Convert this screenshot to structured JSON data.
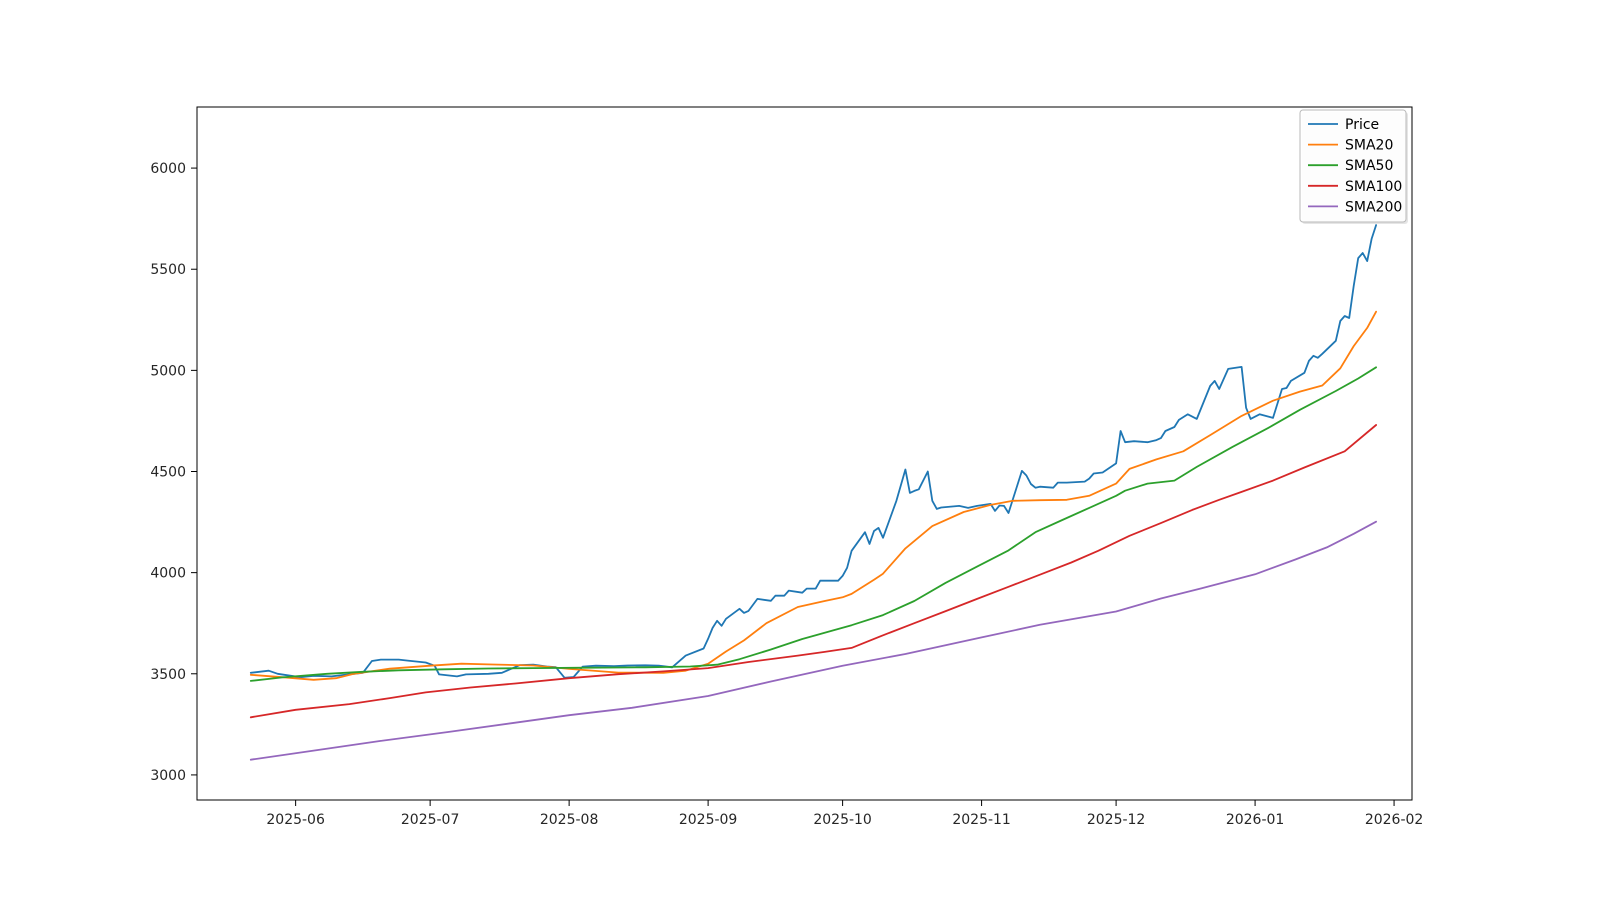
{
  "figure": {
    "background": "#ffffff",
    "spine_color": "#000000",
    "tick_text_color": "#262626",
    "legend_border_color": "#b9b9b9",
    "legend_background": "#ffffff"
  },
  "chart_data": {
    "type": "line",
    "title": "",
    "xlabel": "",
    "ylabel": "",
    "grid": false,
    "xlim": [
      "2025-05-10",
      "2026-02-05"
    ],
    "ylim": [
      2876,
      6302
    ],
    "x_ticks": [
      {
        "label": "2025-06",
        "date": "2025-06-01"
      },
      {
        "label": "2025-07",
        "date": "2025-07-01"
      },
      {
        "label": "2025-08",
        "date": "2025-08-01"
      },
      {
        "label": "2025-09",
        "date": "2025-09-01"
      },
      {
        "label": "2025-10",
        "date": "2025-10-01"
      },
      {
        "label": "2025-11",
        "date": "2025-11-01"
      },
      {
        "label": "2025-12",
        "date": "2025-12-01"
      },
      {
        "label": "2026-01",
        "date": "2026-01-01"
      },
      {
        "label": "2026-02",
        "date": "2026-02-01"
      }
    ],
    "y_ticks": [
      3000,
      3500,
      4000,
      4500,
      5000,
      5500,
      6000
    ],
    "legend": {
      "position": "upper-right",
      "labels": [
        "Price",
        "SMA20",
        "SMA50",
        "SMA100",
        "SMA200"
      ]
    },
    "series": [
      {
        "name": "Price",
        "color": "#1f77b4",
        "points": [
          [
            "2025-05-22",
            3505
          ],
          [
            "2025-05-26",
            3515
          ],
          [
            "2025-05-28",
            3500
          ],
          [
            "2025-06-02",
            3483
          ],
          [
            "2025-06-05",
            3490
          ],
          [
            "2025-06-09",
            3487
          ],
          [
            "2025-06-12",
            3495
          ],
          [
            "2025-06-16",
            3505
          ],
          [
            "2025-06-18",
            3563
          ],
          [
            "2025-06-20",
            3570
          ],
          [
            "2025-06-24",
            3570
          ],
          [
            "2025-06-26",
            3565
          ],
          [
            "2025-06-30",
            3556
          ],
          [
            "2025-07-02",
            3540
          ],
          [
            "2025-07-03",
            3497
          ],
          [
            "2025-07-07",
            3487
          ],
          [
            "2025-07-09",
            3497
          ],
          [
            "2025-07-14",
            3500
          ],
          [
            "2025-07-17",
            3505
          ],
          [
            "2025-07-21",
            3543
          ],
          [
            "2025-07-24",
            3545
          ],
          [
            "2025-07-27",
            3536
          ],
          [
            "2025-07-29",
            3533
          ],
          [
            "2025-07-31",
            3480
          ],
          [
            "2025-08-02",
            3484
          ],
          [
            "2025-08-04",
            3535
          ],
          [
            "2025-08-07",
            3540
          ],
          [
            "2025-08-11",
            3538
          ],
          [
            "2025-08-14",
            3541
          ],
          [
            "2025-08-18",
            3542
          ],
          [
            "2025-08-21",
            3540
          ],
          [
            "2025-08-24",
            3532
          ],
          [
            "2025-08-27",
            3590
          ],
          [
            "2025-08-31",
            3625
          ],
          [
            "2025-09-01",
            3673
          ],
          [
            "2025-09-02",
            3727
          ],
          [
            "2025-09-03",
            3762
          ],
          [
            "2025-09-04",
            3737
          ],
          [
            "2025-09-05",
            3772
          ],
          [
            "2025-09-08",
            3821
          ],
          [
            "2025-09-09",
            3801
          ],
          [
            "2025-09-10",
            3811
          ],
          [
            "2025-09-12",
            3870
          ],
          [
            "2025-09-15",
            3861
          ],
          [
            "2025-09-16",
            3886
          ],
          [
            "2025-09-18",
            3886
          ],
          [
            "2025-09-19",
            3911
          ],
          [
            "2025-09-22",
            3901
          ],
          [
            "2025-09-23",
            3921
          ],
          [
            "2025-09-25",
            3921
          ],
          [
            "2025-09-26",
            3960
          ],
          [
            "2025-09-30",
            3960
          ],
          [
            "2025-10-01",
            3984
          ],
          [
            "2025-10-02",
            4024
          ],
          [
            "2025-10-03",
            4108
          ],
          [
            "2025-10-06",
            4200
          ],
          [
            "2025-10-07",
            4142
          ],
          [
            "2025-10-08",
            4206
          ],
          [
            "2025-10-09",
            4221
          ],
          [
            "2025-10-10",
            4172
          ],
          [
            "2025-10-13",
            4355
          ],
          [
            "2025-10-15",
            4510
          ],
          [
            "2025-10-16",
            4394
          ],
          [
            "2025-10-17",
            4404
          ],
          [
            "2025-10-18",
            4412
          ],
          [
            "2025-10-20",
            4500
          ],
          [
            "2025-10-21",
            4355
          ],
          [
            "2025-10-22",
            4315
          ],
          [
            "2025-10-23",
            4322
          ],
          [
            "2025-10-27",
            4330
          ],
          [
            "2025-10-29",
            4320
          ],
          [
            "2025-10-31",
            4330
          ],
          [
            "2025-11-03",
            4340
          ],
          [
            "2025-11-04",
            4305
          ],
          [
            "2025-11-05",
            4332
          ],
          [
            "2025-11-06",
            4330
          ],
          [
            "2025-11-07",
            4295
          ],
          [
            "2025-11-10",
            4503
          ],
          [
            "2025-11-11",
            4480
          ],
          [
            "2025-11-12",
            4438
          ],
          [
            "2025-11-13",
            4420
          ],
          [
            "2025-11-14",
            4425
          ],
          [
            "2025-11-17",
            4420
          ],
          [
            "2025-11-18",
            4445
          ],
          [
            "2025-11-20",
            4445
          ],
          [
            "2025-11-24",
            4450
          ],
          [
            "2025-11-25",
            4465
          ],
          [
            "2025-11-26",
            4490
          ],
          [
            "2025-11-28",
            4495
          ],
          [
            "2025-12-01",
            4540
          ],
          [
            "2025-12-02",
            4700
          ],
          [
            "2025-12-03",
            4645
          ],
          [
            "2025-12-05",
            4650
          ],
          [
            "2025-12-08",
            4645
          ],
          [
            "2025-12-10",
            4655
          ],
          [
            "2025-12-11",
            4665
          ],
          [
            "2025-12-12",
            4700
          ],
          [
            "2025-12-14",
            4720
          ],
          [
            "2025-12-15",
            4755
          ],
          [
            "2025-12-17",
            4783
          ],
          [
            "2025-12-19",
            4760
          ],
          [
            "2025-12-22",
            4923
          ],
          [
            "2025-12-23",
            4948
          ],
          [
            "2025-12-24",
            4908
          ],
          [
            "2025-12-26",
            5007
          ],
          [
            "2025-12-29",
            5017
          ],
          [
            "2025-12-30",
            4815
          ],
          [
            "2025-12-31",
            4760
          ],
          [
            "2026-01-02",
            4783
          ],
          [
            "2026-01-05",
            4765
          ],
          [
            "2026-01-07",
            4908
          ],
          [
            "2026-01-08",
            4913
          ],
          [
            "2026-01-09",
            4948
          ],
          [
            "2026-01-12",
            4988
          ],
          [
            "2026-01-13",
            5047
          ],
          [
            "2026-01-14",
            5072
          ],
          [
            "2026-01-15",
            5062
          ],
          [
            "2026-01-16",
            5082
          ],
          [
            "2026-01-19",
            5146
          ],
          [
            "2026-01-20",
            5244
          ],
          [
            "2026-01-21",
            5269
          ],
          [
            "2026-01-22",
            5259
          ],
          [
            "2026-01-23",
            5417
          ],
          [
            "2026-01-24",
            5555
          ],
          [
            "2026-01-25",
            5580
          ],
          [
            "2026-01-26",
            5540
          ],
          [
            "2026-01-27",
            5650
          ],
          [
            "2026-01-28",
            5718
          ]
        ]
      },
      {
        "name": "SMA20",
        "color": "#ff7f0e",
        "points": [
          [
            "2025-05-22",
            3495
          ],
          [
            "2025-05-29",
            3483
          ],
          [
            "2025-06-05",
            3470
          ],
          [
            "2025-06-10",
            3478
          ],
          [
            "2025-06-14",
            3500
          ],
          [
            "2025-06-22",
            3525
          ],
          [
            "2025-07-01",
            3540
          ],
          [
            "2025-07-08",
            3550
          ],
          [
            "2025-07-15",
            3546
          ],
          [
            "2025-07-24",
            3541
          ],
          [
            "2025-08-01",
            3524
          ],
          [
            "2025-08-12",
            3506
          ],
          [
            "2025-08-22",
            3505
          ],
          [
            "2025-08-27",
            3515
          ],
          [
            "2025-09-01",
            3550
          ],
          [
            "2025-09-05",
            3610
          ],
          [
            "2025-09-09",
            3665
          ],
          [
            "2025-09-14",
            3750
          ],
          [
            "2025-09-21",
            3830
          ],
          [
            "2025-09-27",
            3860
          ],
          [
            "2025-10-01",
            3878
          ],
          [
            "2025-10-03",
            3895
          ],
          [
            "2025-10-08",
            3965
          ],
          [
            "2025-10-10",
            3995
          ],
          [
            "2025-10-15",
            4120
          ],
          [
            "2025-10-21",
            4230
          ],
          [
            "2025-10-28",
            4300
          ],
          [
            "2025-11-03",
            4335
          ],
          [
            "2025-11-08",
            4355
          ],
          [
            "2025-11-14",
            4358
          ],
          [
            "2025-11-20",
            4360
          ],
          [
            "2025-11-25",
            4380
          ],
          [
            "2025-12-01",
            4440
          ],
          [
            "2025-12-04",
            4513
          ],
          [
            "2025-12-10",
            4560
          ],
          [
            "2025-12-16",
            4600
          ],
          [
            "2025-12-22",
            4680
          ],
          [
            "2025-12-29",
            4775
          ],
          [
            "2026-01-05",
            4850
          ],
          [
            "2026-01-11",
            4895
          ],
          [
            "2026-01-16",
            4925
          ],
          [
            "2026-01-20",
            5010
          ],
          [
            "2026-01-23",
            5120
          ],
          [
            "2026-01-26",
            5210
          ],
          [
            "2026-01-28",
            5290
          ]
        ]
      },
      {
        "name": "SMA50",
        "color": "#2ca02c",
        "points": [
          [
            "2025-05-22",
            3465
          ],
          [
            "2025-05-29",
            3482
          ],
          [
            "2025-06-08",
            3500
          ],
          [
            "2025-06-16",
            3510
          ],
          [
            "2025-06-24",
            3517
          ],
          [
            "2025-07-04",
            3522
          ],
          [
            "2025-07-14",
            3526
          ],
          [
            "2025-07-24",
            3528
          ],
          [
            "2025-08-05",
            3530
          ],
          [
            "2025-08-18",
            3532
          ],
          [
            "2025-08-28",
            3536
          ],
          [
            "2025-09-03",
            3545
          ],
          [
            "2025-09-08",
            3572
          ],
          [
            "2025-09-15",
            3620
          ],
          [
            "2025-09-22",
            3672
          ],
          [
            "2025-09-29",
            3715
          ],
          [
            "2025-10-03",
            3740
          ],
          [
            "2025-10-10",
            3790
          ],
          [
            "2025-10-17",
            3860
          ],
          [
            "2025-10-24",
            3950
          ],
          [
            "2025-10-31",
            4030
          ],
          [
            "2025-11-07",
            4110
          ],
          [
            "2025-11-13",
            4200
          ],
          [
            "2025-11-19",
            4260
          ],
          [
            "2025-11-25",
            4320
          ],
          [
            "2025-12-01",
            4380
          ],
          [
            "2025-12-03",
            4405
          ],
          [
            "2025-12-08",
            4440
          ],
          [
            "2025-12-14",
            4455
          ],
          [
            "2025-12-19",
            4523
          ],
          [
            "2025-12-27",
            4622
          ],
          [
            "2026-01-04",
            4716
          ],
          [
            "2026-01-11",
            4805
          ],
          [
            "2026-01-19",
            4898
          ],
          [
            "2026-01-24",
            4960
          ],
          [
            "2026-01-28",
            5015
          ]
        ]
      },
      {
        "name": "SMA100",
        "color": "#d62728",
        "points": [
          [
            "2025-05-22",
            3285
          ],
          [
            "2025-06-01",
            3322
          ],
          [
            "2025-06-13",
            3350
          ],
          [
            "2025-06-22",
            3380
          ],
          [
            "2025-06-30",
            3408
          ],
          [
            "2025-07-10",
            3432
          ],
          [
            "2025-07-20",
            3452
          ],
          [
            "2025-08-01",
            3478
          ],
          [
            "2025-08-12",
            3498
          ],
          [
            "2025-08-22",
            3512
          ],
          [
            "2025-09-01",
            3528
          ],
          [
            "2025-09-10",
            3558
          ],
          [
            "2025-09-21",
            3590
          ],
          [
            "2025-09-27",
            3608
          ],
          [
            "2025-10-03",
            3628
          ],
          [
            "2025-10-10",
            3690
          ],
          [
            "2025-10-17",
            3750
          ],
          [
            "2025-10-24",
            3810
          ],
          [
            "2025-10-31",
            3870
          ],
          [
            "2025-11-07",
            3930
          ],
          [
            "2025-11-14",
            3990
          ],
          [
            "2025-11-21",
            4050
          ],
          [
            "2025-11-27",
            4108
          ],
          [
            "2025-12-04",
            4182
          ],
          [
            "2025-12-11",
            4245
          ],
          [
            "2025-12-18",
            4310
          ],
          [
            "2025-12-24",
            4360
          ],
          [
            "2025-12-29",
            4399
          ],
          [
            "2026-01-05",
            4455
          ],
          [
            "2026-01-12",
            4520
          ],
          [
            "2026-01-21",
            4600
          ],
          [
            "2026-01-28",
            4730
          ]
        ]
      },
      {
        "name": "SMA200",
        "color": "#9467bd",
        "points": [
          [
            "2025-05-22",
            3075
          ],
          [
            "2025-06-05",
            3120
          ],
          [
            "2025-06-20",
            3168
          ],
          [
            "2025-07-05",
            3212
          ],
          [
            "2025-07-20",
            3258
          ],
          [
            "2025-08-01",
            3295
          ],
          [
            "2025-08-15",
            3332
          ],
          [
            "2025-09-01",
            3390
          ],
          [
            "2025-09-15",
            3462
          ],
          [
            "2025-10-01",
            3540
          ],
          [
            "2025-10-15",
            3598
          ],
          [
            "2025-11-01",
            3680
          ],
          [
            "2025-11-14",
            3742
          ],
          [
            "2025-12-01",
            3808
          ],
          [
            "2025-12-11",
            3872
          ],
          [
            "2025-12-20",
            3922
          ],
          [
            "2026-01-01",
            3992
          ],
          [
            "2026-01-10",
            4065
          ],
          [
            "2026-01-17",
            4125
          ],
          [
            "2026-01-23",
            4192
          ],
          [
            "2026-01-28",
            4252
          ]
        ]
      }
    ]
  }
}
